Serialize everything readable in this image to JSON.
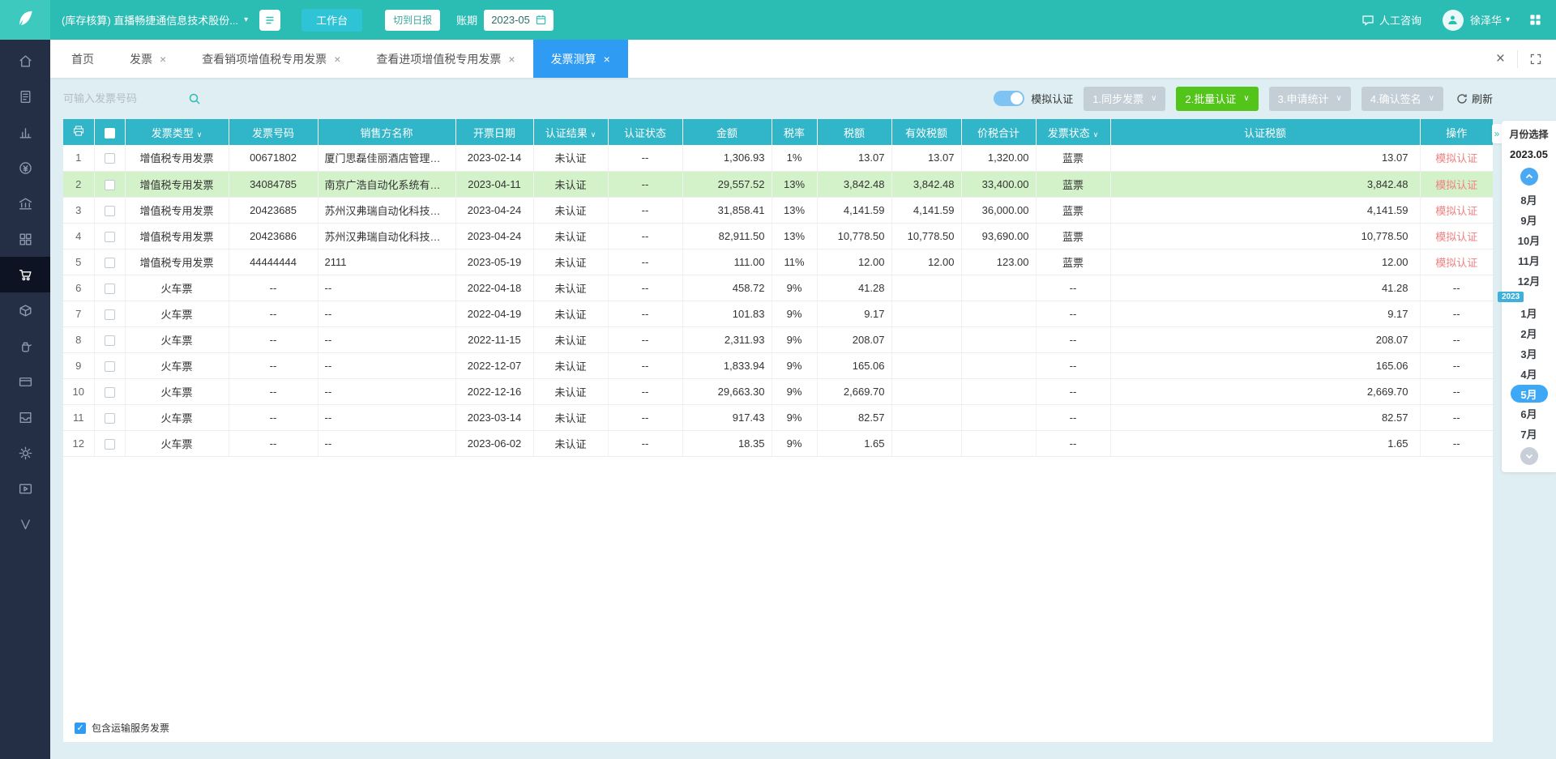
{
  "topbar": {
    "company": "(库存核算) 直播畅捷通信息技术股份...",
    "workbench_btn": "工作台",
    "switch_daily_btn": "切到日报",
    "period_label": "账期",
    "period_value": "2023-05",
    "consult": "人工咨询",
    "username": "徐泽华"
  },
  "sidebar": {
    "items": [
      {
        "name": "home",
        "active": false
      },
      {
        "name": "invoice-bill",
        "active": false
      },
      {
        "name": "report-chart",
        "active": false
      },
      {
        "name": "funds",
        "active": false
      },
      {
        "name": "bank",
        "active": false
      },
      {
        "name": "modules-grid",
        "active": false
      },
      {
        "name": "purchase-cart",
        "active": true
      },
      {
        "name": "inventory-box",
        "active": false
      },
      {
        "name": "teapot",
        "active": false
      },
      {
        "name": "voucher-card",
        "active": false
      },
      {
        "name": "document-tray",
        "active": false
      },
      {
        "name": "settings-gear",
        "active": false
      },
      {
        "name": "video-training",
        "active": false
      },
      {
        "name": "brand-v",
        "active": false
      }
    ]
  },
  "tabs": [
    {
      "label": "首页",
      "closable": false,
      "active": false
    },
    {
      "label": "发票",
      "closable": true,
      "active": false
    },
    {
      "label": "查看销项增值税专用发票",
      "closable": true,
      "active": false
    },
    {
      "label": "查看进项增值税专用发票",
      "closable": true,
      "active": false
    },
    {
      "label": "发票测算",
      "closable": true,
      "active": true
    }
  ],
  "toolbar": {
    "search_placeholder": "可输入发票号码",
    "simulate_toggle_label": "模拟认证",
    "action_buttons": [
      {
        "label": "1.同步发票",
        "color": "gray"
      },
      {
        "label": "2.批量认证",
        "color": "green"
      },
      {
        "label": "3.申请统计",
        "color": "gray"
      },
      {
        "label": "4.确认签名",
        "color": "gray"
      }
    ],
    "refresh_label": "刷新"
  },
  "table": {
    "columns": [
      "发票类型",
      "发票号码",
      "销售方名称",
      "开票日期",
      "认证结果",
      "认证状态",
      "金额",
      "税率",
      "税额",
      "有效税额",
      "价税合计",
      "发票状态",
      "认证税额",
      "操作"
    ],
    "rows": [
      {
        "num": "1",
        "type": "增值税专用发票",
        "number": "00671802",
        "seller": "厦门思磊佳丽酒店管理有限...",
        "date": "2023-02-14",
        "result": "未认证",
        "status": "--",
        "amount": "1,306.93",
        "rate": "1%",
        "tax": "13.07",
        "valid_tax": "13.07",
        "total": "1,320.00",
        "invoice_status": "蓝票",
        "auth_tax": "13.07",
        "action": "模拟认证",
        "highlight": false
      },
      {
        "num": "2",
        "type": "增值税专用发票",
        "number": "34084785",
        "seller": "南京广浩自动化系统有限责...",
        "date": "2023-04-11",
        "result": "未认证",
        "status": "--",
        "amount": "29,557.52",
        "rate": "13%",
        "tax": "3,842.48",
        "valid_tax": "3,842.48",
        "total": "33,400.00",
        "invoice_status": "蓝票",
        "auth_tax": "3,842.48",
        "action": "模拟认证",
        "highlight": true
      },
      {
        "num": "3",
        "type": "增值税专用发票",
        "number": "20423685",
        "seller": "苏州汉弗瑞自动化科技有限...",
        "date": "2023-04-24",
        "result": "未认证",
        "status": "--",
        "amount": "31,858.41",
        "rate": "13%",
        "tax": "4,141.59",
        "valid_tax": "4,141.59",
        "total": "36,000.00",
        "invoice_status": "蓝票",
        "auth_tax": "4,141.59",
        "action": "模拟认证",
        "highlight": false
      },
      {
        "num": "4",
        "type": "增值税专用发票",
        "number": "20423686",
        "seller": "苏州汉弗瑞自动化科技有限...",
        "date": "2023-04-24",
        "result": "未认证",
        "status": "--",
        "amount": "82,911.50",
        "rate": "13%",
        "tax": "10,778.50",
        "valid_tax": "10,778.50",
        "total": "93,690.00",
        "invoice_status": "蓝票",
        "auth_tax": "10,778.50",
        "action": "模拟认证",
        "highlight": false
      },
      {
        "num": "5",
        "type": "增值税专用发票",
        "number": "44444444",
        "seller": "2111",
        "date": "2023-05-19",
        "result": "未认证",
        "status": "--",
        "amount": "111.00",
        "rate": "11%",
        "tax": "12.00",
        "valid_tax": "12.00",
        "total": "123.00",
        "invoice_status": "蓝票",
        "auth_tax": "12.00",
        "action": "模拟认证",
        "highlight": false
      },
      {
        "num": "6",
        "type": "火车票",
        "number": "--",
        "seller": "--",
        "date": "2022-04-18",
        "result": "未认证",
        "status": "--",
        "amount": "458.72",
        "rate": "9%",
        "tax": "41.28",
        "valid_tax": "",
        "total": "",
        "invoice_status": "--",
        "auth_tax": "41.28",
        "action": "--",
        "highlight": false
      },
      {
        "num": "7",
        "type": "火车票",
        "number": "--",
        "seller": "--",
        "date": "2022-04-19",
        "result": "未认证",
        "status": "--",
        "amount": "101.83",
        "rate": "9%",
        "tax": "9.17",
        "valid_tax": "",
        "total": "",
        "invoice_status": "--",
        "auth_tax": "9.17",
        "action": "--",
        "highlight": false
      },
      {
        "num": "8",
        "type": "火车票",
        "number": "--",
        "seller": "--",
        "date": "2022-11-15",
        "result": "未认证",
        "status": "--",
        "amount": "2,311.93",
        "rate": "9%",
        "tax": "208.07",
        "valid_tax": "",
        "total": "",
        "invoice_status": "--",
        "auth_tax": "208.07",
        "action": "--",
        "highlight": false
      },
      {
        "num": "9",
        "type": "火车票",
        "number": "--",
        "seller": "--",
        "date": "2022-12-07",
        "result": "未认证",
        "status": "--",
        "amount": "1,833.94",
        "rate": "9%",
        "tax": "165.06",
        "valid_tax": "",
        "total": "",
        "invoice_status": "--",
        "auth_tax": "165.06",
        "action": "--",
        "highlight": false
      },
      {
        "num": "10",
        "type": "火车票",
        "number": "--",
        "seller": "--",
        "date": "2022-12-16",
        "result": "未认证",
        "status": "--",
        "amount": "29,663.30",
        "rate": "9%",
        "tax": "2,669.70",
        "valid_tax": "",
        "total": "",
        "invoice_status": "--",
        "auth_tax": "2,669.70",
        "action": "--",
        "highlight": false
      },
      {
        "num": "11",
        "type": "火车票",
        "number": "--",
        "seller": "--",
        "date": "2023-03-14",
        "result": "未认证",
        "status": "--",
        "amount": "917.43",
        "rate": "9%",
        "tax": "82.57",
        "valid_tax": "",
        "total": "",
        "invoice_status": "--",
        "auth_tax": "82.57",
        "action": "--",
        "highlight": false
      },
      {
        "num": "12",
        "type": "火车票",
        "number": "--",
        "seller": "--",
        "date": "2023-06-02",
        "result": "未认证",
        "status": "--",
        "amount": "18.35",
        "rate": "9%",
        "tax": "1.65",
        "valid_tax": "",
        "total": "",
        "invoice_status": "--",
        "auth_tax": "1.65",
        "action": "--",
        "highlight": false
      }
    ]
  },
  "month_panel": {
    "title": "月份选择",
    "current_period": "2023.05",
    "months_prev_year": [
      "8月",
      "9月",
      "10月",
      "11月",
      "12月"
    ],
    "year_badge": "2023",
    "months_current_year": [
      "1月",
      "2月",
      "3月",
      "4月",
      "5月",
      "6月",
      "7月"
    ],
    "selected_month": "5月"
  },
  "footer": {
    "transport_checkbox_label": "包含运输服务发票"
  },
  "icons": {
    "caret_down": "▾",
    "dropdown_caret": "∨",
    "sort_caret": "∨",
    "close": "×",
    "checkmark": "✓",
    "collapse_right": "»"
  },
  "colors": {
    "header_teal": "#2bbdb4",
    "table_header_cyan": "#31b5c8",
    "active_tab_blue": "#2f9bf3",
    "green_button": "#52c41a",
    "gray_button": "#c3ced6",
    "highlight_row_green": "#d3f2c9",
    "selected_month_blue": "#3da8f5",
    "sidebar_navy": "#242f45",
    "action_link_pink": "#ef8080",
    "content_background": "#dfeef2"
  }
}
